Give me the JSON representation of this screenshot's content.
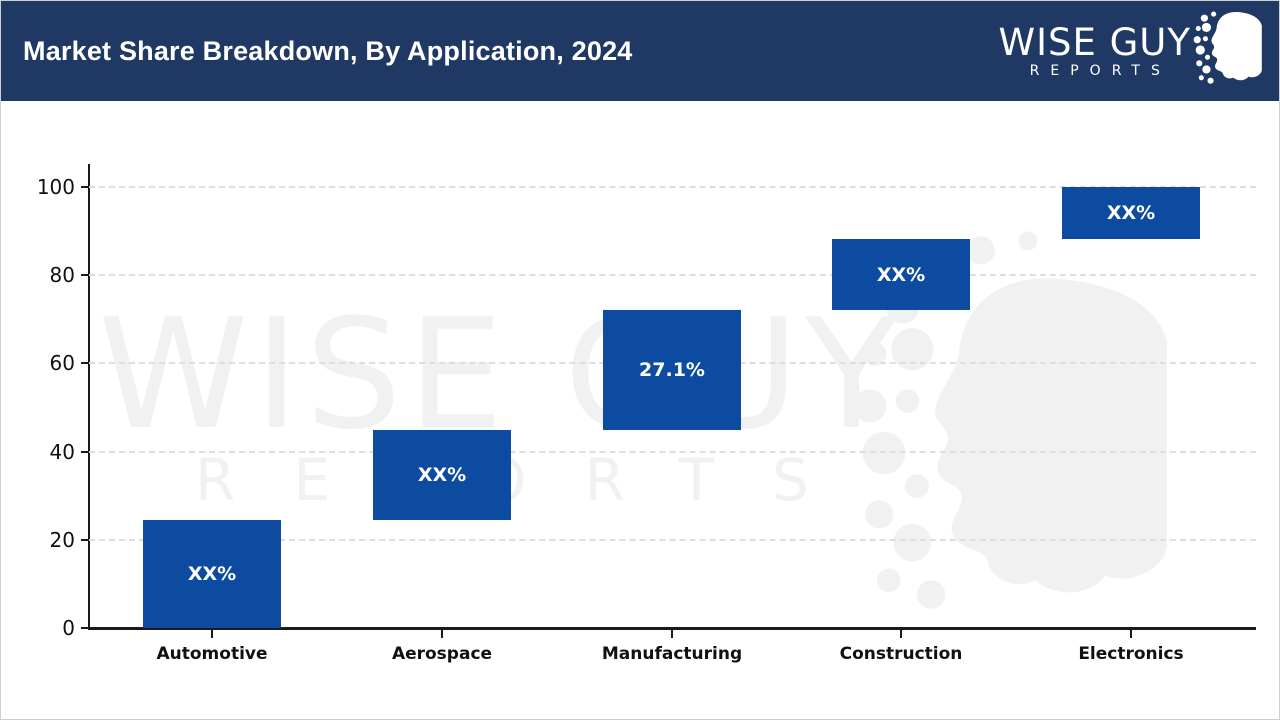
{
  "header": {
    "title": "Market Share Breakdown, By Application, 2024",
    "background_color": "#1f3864",
    "logo": {
      "line1": "WISE GUY",
      "line2": "REPORTS"
    }
  },
  "watermark": {
    "line1": "WISE GUY",
    "line2": "REPORTS"
  },
  "chart_data": {
    "type": "bar",
    "subtype": "waterfall",
    "title": "Market Share Breakdown, By Application, 2024",
    "categories": [
      "Automotive",
      "Aerospace",
      "Manufacturing",
      "Construction",
      "Electronics"
    ],
    "segments": [
      {
        "category": "Automotive",
        "start": 0,
        "end": 24.5,
        "label": "XX%"
      },
      {
        "category": "Aerospace",
        "start": 24.5,
        "end": 45.0,
        "label": "XX%"
      },
      {
        "category": "Manufacturing",
        "start": 45.0,
        "end": 72.1,
        "label": "27.1%",
        "value": 27.1
      },
      {
        "category": "Construction",
        "start": 72.1,
        "end": 88.2,
        "label": "XX%"
      },
      {
        "category": "Electronics",
        "start": 88.2,
        "end": 100.0,
        "label": "XX%"
      }
    ],
    "yticks": [
      0,
      20,
      40,
      60,
      80,
      100
    ],
    "ylim": [
      0,
      105
    ],
    "xlabel": "",
    "ylabel": "",
    "bar_color": "#0c4ba0",
    "grid": "horizontal-dashed",
    "legend": "none"
  }
}
